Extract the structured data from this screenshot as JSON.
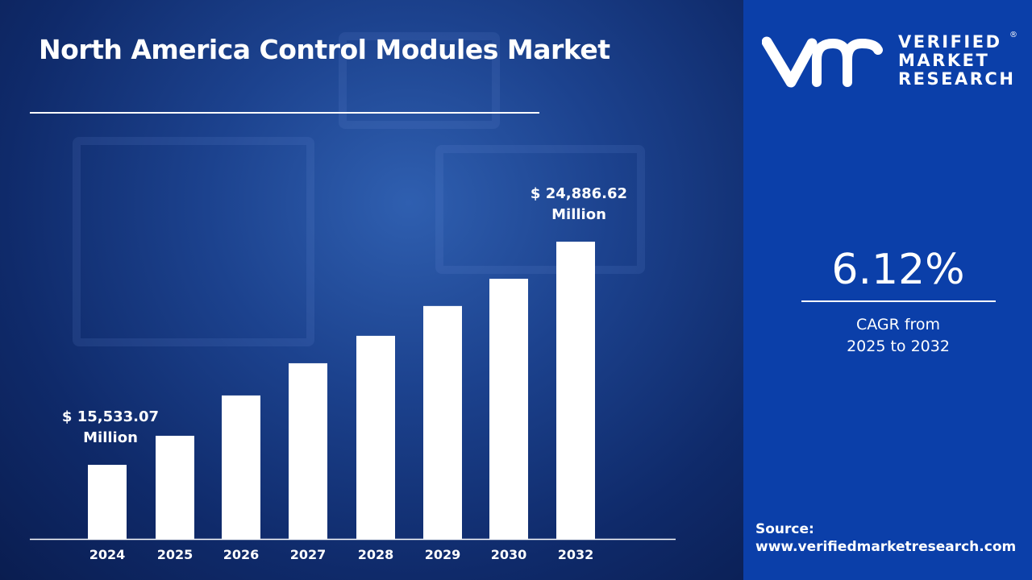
{
  "title": "North America Control Modules Market",
  "brand": {
    "logo_text": [
      "VERIFIED",
      "MARKET",
      "RESEARCH"
    ],
    "registered": "®",
    "color": "#0b3fa9"
  },
  "cagr": {
    "value": "6.12%",
    "label_line1": "CAGR from",
    "label_line2": "2025 to 2032"
  },
  "source": {
    "label": "Source:",
    "url": "www.verifiedmarketresearch.com"
  },
  "chart_data": {
    "type": "bar",
    "title": "North America Control Modules Market",
    "categories": [
      "2024",
      "2025",
      "2026",
      "2027",
      "2028",
      "2029",
      "2030",
      "2032"
    ],
    "values": [
      15533.07,
      16750,
      18440,
      19790,
      20940,
      22190,
      23330,
      24886.62
    ],
    "unit": "$ Million",
    "data_labels": [
      {
        "index": 0,
        "line1": "$ 15,533.07",
        "line2": "Million"
      },
      {
        "index": 7,
        "line1": "$ 24,886.62",
        "line2": "Million"
      }
    ],
    "bar_color": "#ffffff",
    "grid": false,
    "legend": "none"
  }
}
